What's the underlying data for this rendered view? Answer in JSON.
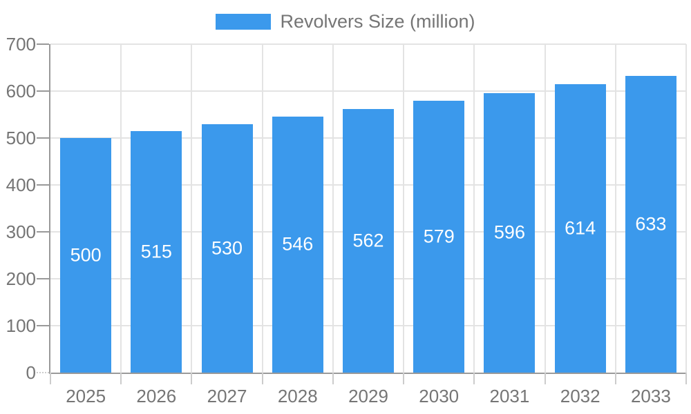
{
  "chart_data": {
    "type": "bar",
    "title": "",
    "legend": {
      "label": "Revolvers Size (million)",
      "position": "top-center"
    },
    "categories": [
      "2025",
      "2026",
      "2027",
      "2028",
      "2029",
      "2030",
      "2031",
      "2032",
      "2033"
    ],
    "series": [
      {
        "name": "Revolvers Size (million)",
        "values": [
          500,
          515,
          530,
          546,
          562,
          579,
          596,
          614,
          633
        ]
      }
    ],
    "value_labels_shown": true,
    "xlabel": "",
    "ylabel": "",
    "ylim": [
      0,
      700
    ],
    "y_ticks": [
      0,
      100,
      200,
      300,
      400,
      500,
      600,
      700
    ],
    "grid": true,
    "colors": {
      "bar": "#3B99EC",
      "value_label": "#FFFFFF",
      "axis_text": "#757575",
      "legend_text": "#757575",
      "grid_line": "#E3E3E3",
      "axis_line": "#999999",
      "x_tick": "#CCCCCC",
      "y_tick": "#999999",
      "background": "#FFFFFF"
    }
  }
}
